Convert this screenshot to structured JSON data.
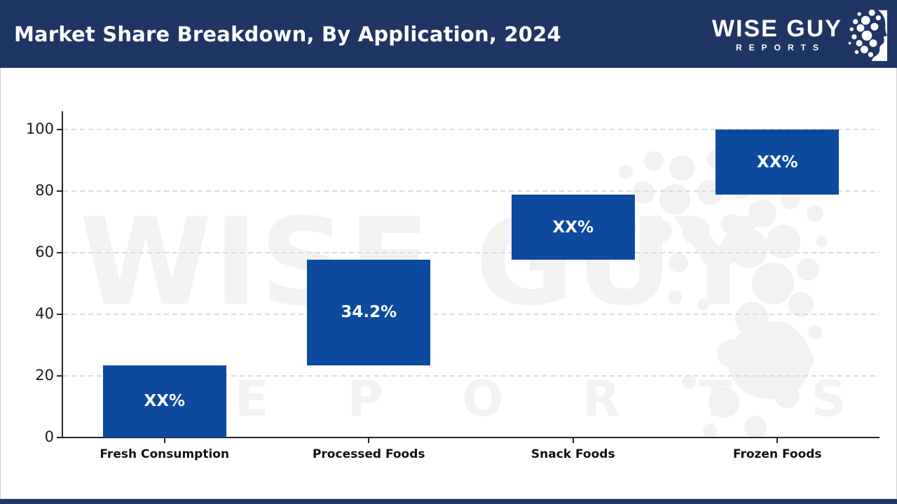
{
  "header": {
    "title": "Market Share Breakdown, By Application, 2024",
    "bg_color": "#1f3564",
    "logo": {
      "line1": "WISE GUY",
      "line2": "REPORTS"
    }
  },
  "watermark": {
    "line1": "WISE GUY",
    "line2": "R E P O R T S"
  },
  "chart_data": {
    "type": "bar",
    "subtype": "waterfall",
    "title": "Market Share Breakdown, By Application, 2024",
    "categories": [
      "Fresh Consumption",
      "Processed Foods",
      "Snack Foods",
      "Frozen Foods"
    ],
    "segments": [
      {
        "category": "Fresh Consumption",
        "start": 0,
        "end": 23.5,
        "label": "XX%"
      },
      {
        "category": "Processed Foods",
        "start": 23.5,
        "end": 57.7,
        "label": "34.2%"
      },
      {
        "category": "Snack Foods",
        "start": 57.7,
        "end": 78.8,
        "label": "XX%"
      },
      {
        "category": "Frozen Foods",
        "start": 78.8,
        "end": 100,
        "label": "XX%"
      }
    ],
    "bar_labels": [
      "XX%",
      "34.2%",
      "XX%",
      "XX%"
    ],
    "yticks": [
      0,
      20,
      40,
      60,
      80,
      100
    ],
    "ylim": [
      0,
      105
    ],
    "xlabel": "",
    "ylabel": "",
    "grid": "horizontal-dashed",
    "legend": "none",
    "bar_color": "#0d4a9e",
    "label_color": "#ffffff"
  }
}
